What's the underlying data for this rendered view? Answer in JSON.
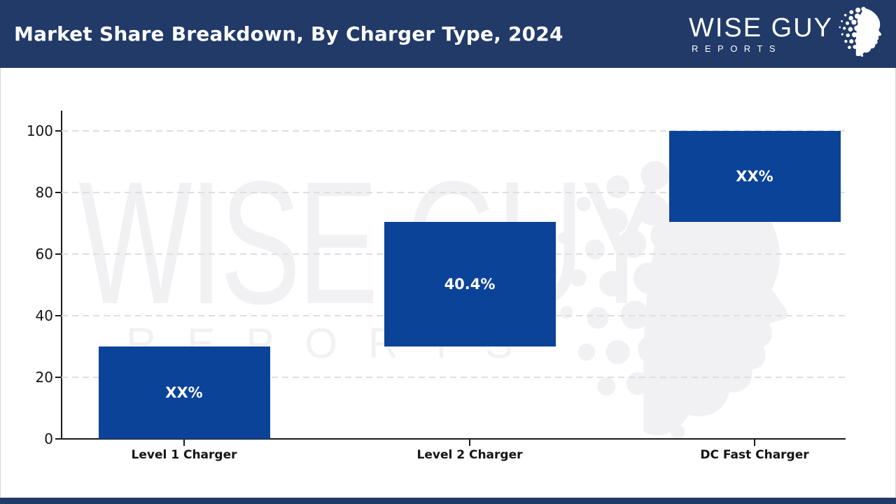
{
  "header": {
    "title": "Market Share Breakdown, By Charger Type, 2024",
    "logo_line1": "WISE GUY",
    "logo_line2": "REPORTS"
  },
  "watermark": {
    "line1": "WISE GUY",
    "line2": "REPORTS"
  },
  "colors": {
    "header_bg": "#213A68",
    "footer_bg": "#213A68",
    "bar": "#0B4399",
    "bar_label": "#FFFFFF",
    "gridline": "#DEDEDE",
    "axis": "#1A1A1A",
    "watermark": "#F1F1F4"
  },
  "chart_data": {
    "type": "bar",
    "subtype": "waterfall",
    "title": "Market Share Breakdown, By Charger Type, 2024",
    "categories": [
      "Level 1 Charger",
      "Level 2 Charger",
      "DC Fast Charger"
    ],
    "bars": [
      {
        "category": "Level 1 Charger",
        "label": "XX%",
        "start": 0,
        "end": 30
      },
      {
        "category": "Level 2 Charger",
        "label": "40.4%",
        "start": 30,
        "end": 70.4
      },
      {
        "category": "DC Fast Charger",
        "label": "XX%",
        "start": 70.4,
        "end": 100
      }
    ],
    "yticks": [
      0,
      20,
      40,
      60,
      80,
      100
    ],
    "ylim": [
      0,
      106
    ],
    "xlabel": "",
    "ylabel": "",
    "grid": "dashed-horizontal",
    "legend": "none"
  }
}
